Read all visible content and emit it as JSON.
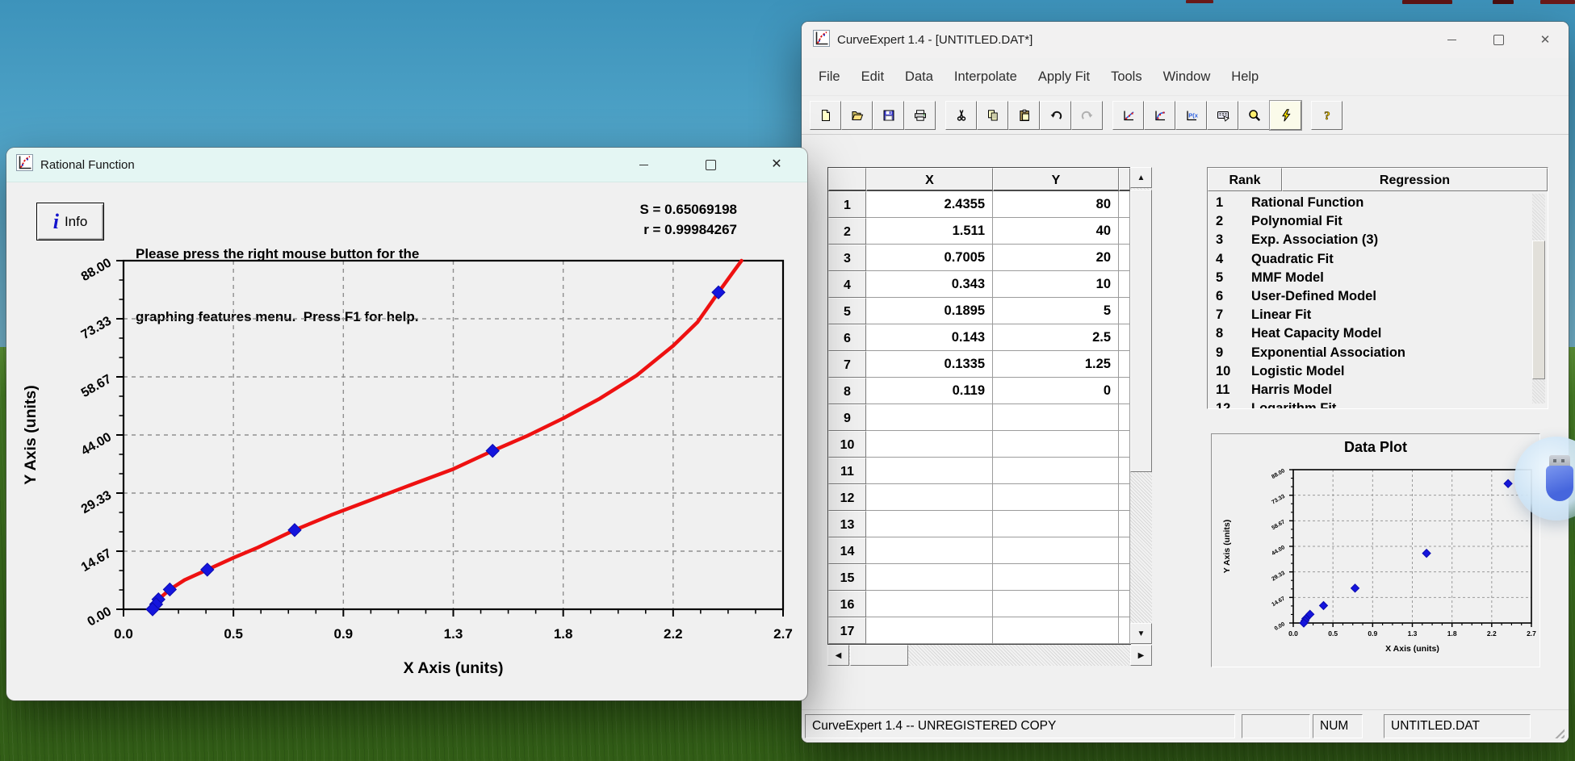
{
  "rf_window": {
    "title": "Rational Function",
    "info_button_label": "Info",
    "help_line1": "Please press the right mouse button for the",
    "help_line2": "graphing features menu.  Press F1 for help.",
    "stat_s": "S = 0.65069198",
    "stat_r": "r = 0.99984267"
  },
  "main_window": {
    "title": "CurveExpert 1.4 - [UNTITLED.DAT*]",
    "menu": [
      "File",
      "Edit",
      "Data",
      "Interpolate",
      "Apply Fit",
      "Tools",
      "Window",
      "Help"
    ],
    "toolbar_groups": [
      [
        "new-file",
        "open-file",
        "save",
        "print"
      ],
      [
        "cut",
        "copy",
        "paste",
        "undo",
        "redo"
      ],
      [
        "linear-fit",
        "nonlinear-fit",
        "polynomial-fit",
        "apply-fit",
        "curve-finder",
        "run-curvefinder"
      ],
      [
        "help"
      ]
    ],
    "table": {
      "columns": [
        "X",
        "Y"
      ],
      "visible_row_count": 17,
      "rows": [
        [
          "2.4355",
          "80"
        ],
        [
          "1.511",
          "40"
        ],
        [
          "0.7005",
          "20"
        ],
        [
          "0.343",
          "10"
        ],
        [
          "0.1895",
          "5"
        ],
        [
          "0.143",
          "2.5"
        ],
        [
          "0.1335",
          "1.25"
        ],
        [
          "0.119",
          "0"
        ]
      ]
    },
    "rank_panel": {
      "rank_header": "Rank",
      "regression_header": "Regression",
      "items": [
        "Rational Function",
        "Polynomial Fit",
        "Exp. Association (3)",
        "Quadratic Fit",
        "MMF Model",
        "User-Defined Model",
        "Linear Fit",
        "Heat Capacity Model",
        "Exponential Association",
        "Logistic Model",
        "Harris Model",
        "Logarithm Fit"
      ]
    },
    "statusbar": {
      "message": "CurveExpert 1.4 -- UNREGISTERED COPY",
      "pane2": "",
      "num_lock": "NUM",
      "filename": "UNTITLED.DAT"
    }
  },
  "chart_data": [
    {
      "type": "scatter",
      "title": "",
      "xlabel": "X Axis (units)",
      "ylabel": "Y Axis (units)",
      "xlim": [
        0,
        2.7
      ],
      "ylim": [
        0,
        88
      ],
      "grid": true,
      "legend": false,
      "xticks": {
        "values": [
          0,
          0.45,
          0.9,
          1.35,
          1.8,
          2.25,
          2.7
        ],
        "labels": [
          "0.0",
          "0.5",
          "0.9",
          "1.3",
          "1.8",
          "2.2",
          "2.7"
        ]
      },
      "yticks": {
        "values": [
          0,
          14.667,
          29.333,
          44,
          58.667,
          73.333,
          88
        ],
        "labels": [
          "0.00",
          "14.67",
          "29.33",
          "44.00",
          "58.67",
          "73.33",
          "88.00"
        ]
      },
      "points": [
        [
          2.4355,
          80
        ],
        [
          1.511,
          40
        ],
        [
          0.7005,
          20
        ],
        [
          0.343,
          10
        ],
        [
          0.1895,
          5
        ],
        [
          0.143,
          2.5
        ],
        [
          0.1335,
          1.25
        ],
        [
          0.119,
          0
        ]
      ],
      "curve": [
        [
          0.105,
          0
        ],
        [
          0.119,
          0.9
        ],
        [
          0.1335,
          1.7
        ],
        [
          0.143,
          2.4
        ],
        [
          0.16,
          3.4
        ],
        [
          0.1895,
          5
        ],
        [
          0.25,
          7.4
        ],
        [
          0.343,
          10
        ],
        [
          0.45,
          13
        ],
        [
          0.55,
          15.6
        ],
        [
          0.7005,
          20
        ],
        [
          0.85,
          23.8
        ],
        [
          1.0,
          27.3
        ],
        [
          1.15,
          30.8
        ],
        [
          1.35,
          35.4
        ],
        [
          1.511,
          40
        ],
        [
          1.65,
          43.7
        ],
        [
          1.8,
          48.2
        ],
        [
          1.95,
          53.2
        ],
        [
          2.1,
          59
        ],
        [
          2.25,
          66.5
        ],
        [
          2.35,
          72.5
        ],
        [
          2.4355,
          80
        ],
        [
          2.5,
          85.5
        ],
        [
          2.53,
          88
        ]
      ],
      "point_color": "#1515dd",
      "curve_color": "#ee1111"
    },
    {
      "type": "scatter",
      "title": "Data Plot",
      "xlabel": "X Axis (units)",
      "ylabel": "Y Axis (units)",
      "xlim": [
        0,
        2.7
      ],
      "ylim": [
        0,
        88
      ],
      "grid": true,
      "legend": false,
      "xticks": {
        "values": [
          0,
          0.45,
          0.9,
          1.35,
          1.8,
          2.25,
          2.7
        ],
        "labels": [
          "0.0",
          "0.5",
          "0.9",
          "1.3",
          "1.8",
          "2.2",
          "2.7"
        ]
      },
      "yticks": {
        "values": [
          0,
          14.667,
          29.333,
          44,
          58.667,
          73.333,
          88
        ],
        "labels": [
          "0.00",
          "14.67",
          "29.33",
          "44.00",
          "58.67",
          "73.33",
          "88.00"
        ]
      },
      "points": [
        [
          2.4355,
          80
        ],
        [
          1.511,
          40
        ],
        [
          0.7005,
          20
        ],
        [
          0.343,
          10
        ],
        [
          0.1895,
          5
        ],
        [
          0.143,
          2.5
        ],
        [
          0.1335,
          1.25
        ],
        [
          0.119,
          0
        ]
      ],
      "point_color": "#1515dd"
    }
  ]
}
